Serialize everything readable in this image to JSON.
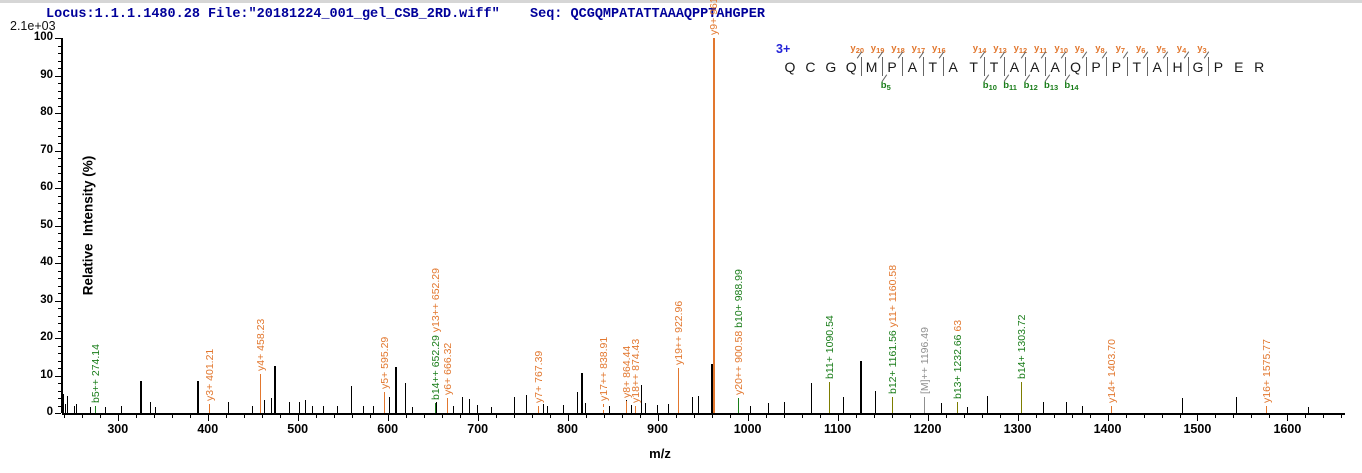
{
  "header": {
    "locus": "Locus:1.1.1.1480.28 File:\"20181224_001_gel_CSB_2RD.wiff\"",
    "seq_label": "Seq: ",
    "sequence": "QCGQMPATATTAAAQPPTAHGPER"
  },
  "axes": {
    "y_label": "Relative  Intensity (%)",
    "y_max_abs": "2.1e+03",
    "y_ticks": [
      0,
      10,
      20,
      30,
      40,
      50,
      60,
      70,
      80,
      90,
      100
    ],
    "x_label": "m/z",
    "x_ticks": [
      300,
      400,
      500,
      600,
      700,
      800,
      900,
      1000,
      1100,
      1200,
      1300,
      1400,
      1500,
      1600
    ]
  },
  "annotation": {
    "charge": "3+",
    "residues": [
      "Q",
      "C",
      "G",
      "Q",
      "M",
      "P",
      "A",
      "T",
      "A",
      "T",
      "T",
      "A",
      "A",
      "A",
      "Q",
      "P",
      "P",
      "T",
      "A",
      "H",
      "G",
      "P",
      "E",
      "R"
    ],
    "y_ions": [
      {
        "site": 4,
        "label": "y20"
      },
      {
        "site": 5,
        "label": "y19"
      },
      {
        "site": 6,
        "label": "y18"
      },
      {
        "site": 7,
        "label": "y17"
      },
      {
        "site": 8,
        "label": "y16"
      },
      {
        "site": 10,
        "label": "y14"
      },
      {
        "site": 11,
        "label": "y13"
      },
      {
        "site": 12,
        "label": "y12"
      },
      {
        "site": 13,
        "label": "y11"
      },
      {
        "site": 14,
        "label": "y10"
      },
      {
        "site": 15,
        "label": "y9"
      },
      {
        "site": 16,
        "label": "y8"
      },
      {
        "site": 17,
        "label": "y7"
      },
      {
        "site": 18,
        "label": "y6"
      },
      {
        "site": 19,
        "label": "y5"
      },
      {
        "site": 20,
        "label": "y4"
      },
      {
        "site": 21,
        "label": "y3"
      }
    ],
    "b_ions": [
      {
        "site": 5,
        "label": "b5"
      },
      {
        "site": 10,
        "label": "b10"
      },
      {
        "site": 11,
        "label": "b11"
      },
      {
        "site": 12,
        "label": "b12"
      },
      {
        "site": 13,
        "label": "b13"
      },
      {
        "site": 14,
        "label": "b14"
      }
    ]
  },
  "chart_data": {
    "type": "bar",
    "xlabel": "m/z",
    "ylabel": "Relative  Intensity (%)",
    "xlim": [
      238,
      1664
    ],
    "ylim": [
      0,
      100
    ],
    "max_absolute_intensity": "2.1e+03",
    "labeled_peaks": [
      {
        "mz": 274.14,
        "intensity": 2,
        "line": "green",
        "labels": [
          {
            "text": "b5++ 274.14",
            "color": "green"
          }
        ]
      },
      {
        "mz": 401.21,
        "intensity": 2.5,
        "line": "orange",
        "labels": [
          {
            "text": "y3+ 401.21",
            "color": "orange"
          }
        ]
      },
      {
        "mz": 458.23,
        "intensity": 10.5,
        "line": "orange",
        "labels": [
          {
            "text": "y4+ 458.23",
            "color": "orange"
          }
        ]
      },
      {
        "mz": 595.29,
        "intensity": 5.7,
        "line": "orange",
        "labels": [
          {
            "text": "y5+ 595.29",
            "color": "orange"
          }
        ]
      },
      {
        "mz": 652.29,
        "intensity": 2.6,
        "line": "green",
        "labels": [
          {
            "text": "b14++ 652.29",
            "color": "green"
          },
          {
            "text": "y13++ 652.29",
            "color": "orange"
          }
        ]
      },
      {
        "mz": 666.32,
        "intensity": 3.9,
        "line": "orange",
        "labels": [
          {
            "text": "y6+ 666.32",
            "color": "orange"
          }
        ]
      },
      {
        "mz": 767.39,
        "intensity": 2,
        "line": "orange",
        "labels": [
          {
            "text": "y7+ 767.39",
            "color": "orange"
          }
        ]
      },
      {
        "mz": 838.91,
        "intensity": 2.4,
        "line": "orange",
        "dashed": true,
        "labels": [
          {
            "text": "y17++ 838.91",
            "color": "orange"
          }
        ]
      },
      {
        "mz": 864.44,
        "intensity": 3.2,
        "line": "orange",
        "labels": [
          {
            "text": "y8+ 864.44",
            "color": "orange"
          }
        ]
      },
      {
        "mz": 874.43,
        "intensity": 1.8,
        "line": "orange",
        "labels": [
          {
            "text": "y18++ 874.43",
            "color": "orange"
          }
        ]
      },
      {
        "mz": 922.96,
        "intensity": 12,
        "line": "orange",
        "labels": [
          {
            "text": "y19++ 922.96",
            "color": "orange"
          }
        ]
      },
      {
        "mz": 961.48,
        "intensity": 100,
        "line": "orange",
        "labels": [
          {
            "text": "y9+ 961.48",
            "color": "orange"
          }
        ]
      },
      {
        "mz": 988.99,
        "intensity": 4,
        "line": "green",
        "labels": [
          {
            "text": "y20++ 900.58",
            "color": "orange"
          },
          {
            "text": "b10+ 988.99",
            "color": "green"
          }
        ]
      },
      {
        "mz": 1090.54,
        "intensity": 8.4,
        "line": "olive",
        "labels": [
          {
            "text": "b11+ 1090.54",
            "color": "green"
          }
        ]
      },
      {
        "mz": 1161.0,
        "intensity": 4.2,
        "line": "olive",
        "labels": [
          {
            "text": "b12+ 1161.56",
            "color": "green"
          },
          {
            "text": "y11+ 1160.58",
            "color": "orange"
          }
        ]
      },
      {
        "mz": 1196.49,
        "intensity": 4.2,
        "line": "gray",
        "labels": [
          {
            "text": "[M]++ 1196.49",
            "color": "gray"
          }
        ]
      },
      {
        "mz": 1232.66,
        "intensity": 3,
        "line": "olive",
        "labels": [
          {
            "text": "b13+ 1232.66",
            "color": "green"
          },
          {
            "text": "63",
            "color": "orange"
          }
        ]
      },
      {
        "mz": 1303.72,
        "intensity": 8.4,
        "line": "olive",
        "labels": [
          {
            "text": "b14+ 1303.72",
            "color": "green"
          }
        ]
      },
      {
        "mz": 1403.7,
        "intensity": 1.8,
        "line": "orange",
        "labels": [
          {
            "text": "y14+ 1403.70",
            "color": "orange"
          }
        ]
      },
      {
        "mz": 1575.77,
        "intensity": 1.8,
        "line": "orange",
        "labels": [
          {
            "text": "y16+ 1575.77",
            "color": "orange"
          }
        ]
      }
    ],
    "peaks": [
      [
        239,
        5
      ],
      [
        241,
        2.5
      ],
      [
        244,
        4.5
      ],
      [
        251,
        2
      ],
      [
        253,
        2.5
      ],
      [
        269,
        1.5
      ],
      [
        286,
        1.5
      ],
      [
        303,
        2
      ],
      [
        325,
        8.5
      ],
      [
        336,
        3
      ],
      [
        341,
        1.5
      ],
      [
        388,
        8.5
      ],
      [
        423,
        3
      ],
      [
        449,
        2
      ],
      [
        463,
        3.5
      ],
      [
        470,
        4
      ],
      [
        474,
        12.5
      ],
      [
        490,
        3
      ],
      [
        501,
        3
      ],
      [
        508,
        3.5
      ],
      [
        516,
        2
      ],
      [
        528,
        2
      ],
      [
        544,
        2
      ],
      [
        559,
        7.3
      ],
      [
        573,
        2
      ],
      [
        584,
        2
      ],
      [
        601,
        4.4
      ],
      [
        608,
        12.2
      ],
      [
        619,
        7.9
      ],
      [
        627,
        1.5
      ],
      [
        654,
        3
      ],
      [
        673,
        2
      ],
      [
        683,
        4.4
      ],
      [
        690,
        3.7
      ],
      [
        699,
        2.1
      ],
      [
        715,
        1.7
      ],
      [
        740,
        4.4
      ],
      [
        754,
        4.8
      ],
      [
        773,
        2.4
      ],
      [
        777,
        1.9
      ],
      [
        795,
        2.1
      ],
      [
        810,
        5.7
      ],
      [
        815,
        10.8
      ],
      [
        819,
        2.8
      ],
      [
        846,
        2
      ],
      [
        865,
        3.5
      ],
      [
        870,
        2.1
      ],
      [
        881,
        7.5
      ],
      [
        886,
        2.8
      ],
      [
        899,
        2.1
      ],
      [
        912,
        2.4
      ],
      [
        938,
        4.2
      ],
      [
        945,
        4.5
      ],
      [
        959,
        13
      ],
      [
        1003,
        2
      ],
      [
        1023,
        2.8
      ],
      [
        1040,
        3
      ],
      [
        1070,
        7.9
      ],
      [
        1106,
        4.2
      ],
      [
        1125,
        14
      ],
      [
        1142,
        6
      ],
      [
        1215,
        2.8
      ],
      [
        1244,
        1.7
      ],
      [
        1266,
        4.5
      ],
      [
        1328,
        3
      ],
      [
        1354,
        3
      ],
      [
        1372,
        2
      ],
      [
        1483,
        3.9
      ],
      [
        1543,
        4.2
      ],
      [
        1623,
        1.5
      ]
    ]
  },
  "colors": {
    "y_ion": "#e2772e",
    "b_ion": "#1a7d1a",
    "overlap": "#7d7d00",
    "precursor": "#8f8f8f",
    "peak_black": "#000000",
    "header_text": "#00009a",
    "charge_blue": "#2424d8"
  }
}
